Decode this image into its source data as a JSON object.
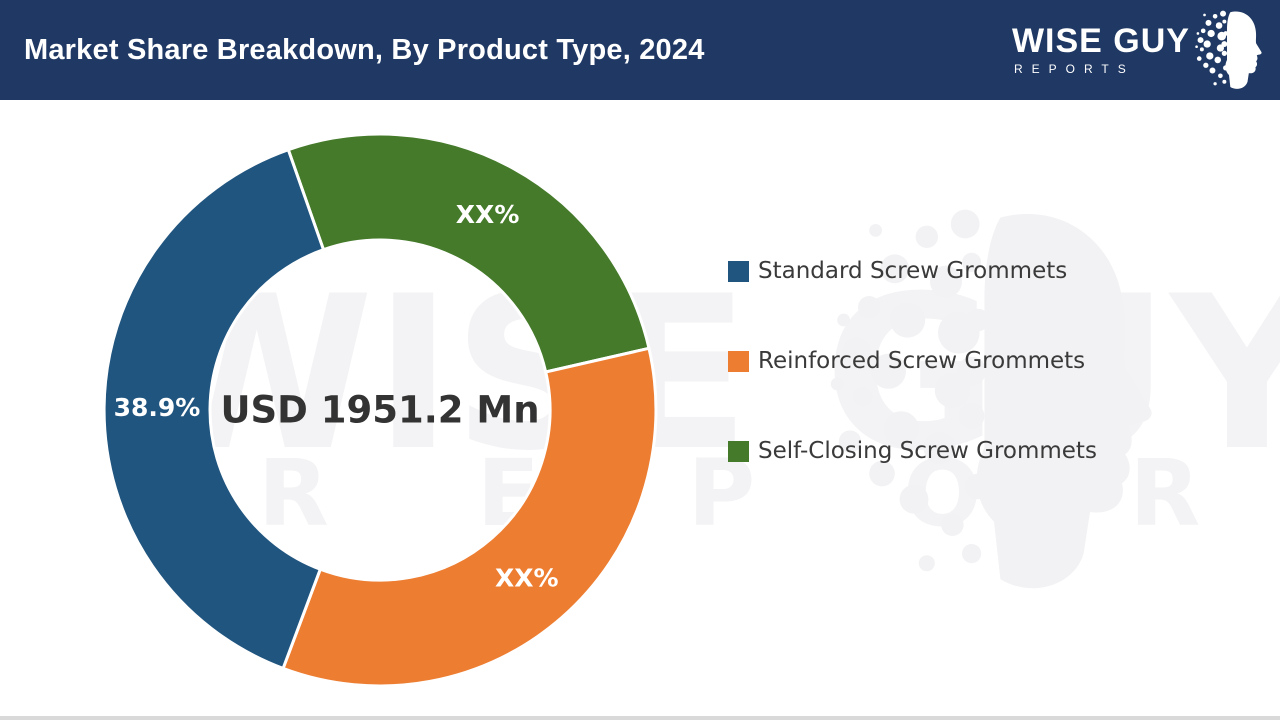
{
  "header": {
    "title": "Market Share Breakdown, By Product Type, 2024",
    "bg_color": "#1F3864",
    "logo": {
      "wordmark": "WISE GUY",
      "subtitle": "REPORTS"
    }
  },
  "watermark": {
    "wordmark": "WISE GUY",
    "subtitle": "R E P O R T S"
  },
  "chart_data": {
    "type": "pie",
    "subtype": "donut",
    "title": "Market Share Breakdown, By Product Type, 2024",
    "center_label": "USD 1951.2 Mn",
    "start_angle_deg": -19.4,
    "inner_radius_ratio": 0.616,
    "segments": [
      {
        "name": "Self-Closing Screw Grommets",
        "label": "XX%",
        "arc_percent_est": 26.8,
        "color": "#447A29"
      },
      {
        "name": "Reinforced Screw Grommets",
        "label": "XX%",
        "arc_percent_est": 34.3,
        "color": "#ED7D31"
      },
      {
        "name": "Standard Screw Grommets",
        "label": "38.9%",
        "arc_percent_est": 38.9,
        "color": "#20557F"
      }
    ],
    "legend": {
      "position": "right",
      "items": [
        {
          "label": "Standard Screw Grommets",
          "color": "#20557F"
        },
        {
          "label": "Reinforced Screw Grommets",
          "color": "#ED7D31"
        },
        {
          "label": "Self-Closing Screw Grommets",
          "color": "#447A29"
        }
      ]
    }
  }
}
